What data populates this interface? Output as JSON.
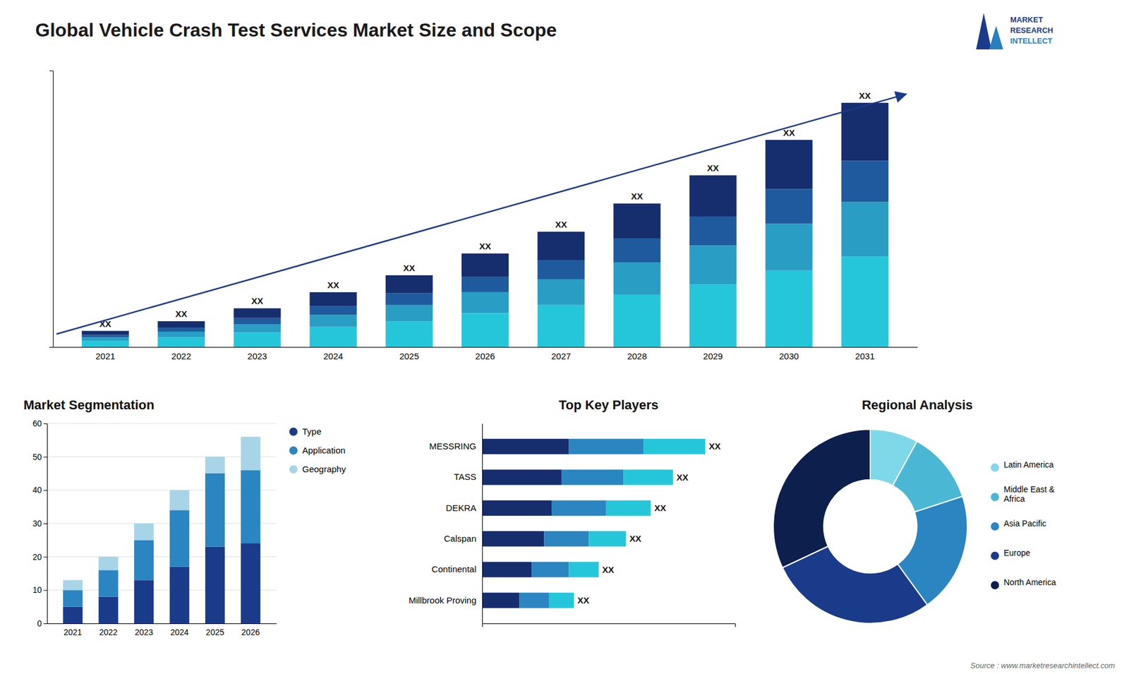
{
  "title": "Global Vehicle Crash Test Services Market Size and Scope",
  "annotations": [
    "Source : www.marketresearchintellect.com",
    "MARKET",
    "RESEARCH",
    "INTELLECT"
  ],
  "chart_data": [
    {
      "type": "bar",
      "stacked": true,
      "categories": [
        "2021",
        "2022",
        "2023",
        "2024",
        "2025",
        "2026",
        "2027",
        "2028",
        "2029",
        "2030",
        "2031"
      ],
      "series": [
        {
          "color": "#26c6da",
          "values": [
            0.8,
            1.2,
            1.8,
            2.5,
            3.2,
            4.2,
            5.2,
            6.5,
            7.8,
            9.5,
            11.2
          ]
        },
        {
          "color": "#2a9dc5",
          "values": [
            0.4,
            0.7,
            1.0,
            1.5,
            2.0,
            2.6,
            3.2,
            4.0,
            4.8,
            5.8,
            6.8
          ]
        },
        {
          "color": "#1f5a9e",
          "values": [
            0.3,
            0.5,
            0.8,
            1.1,
            1.5,
            1.9,
            2.4,
            3.0,
            3.6,
            4.3,
            5.1
          ]
        },
        {
          "color": "#162d6e",
          "values": [
            0.5,
            0.8,
            1.2,
            1.7,
            2.2,
            2.9,
            3.5,
            4.3,
            5.1,
            6.1,
            7.2
          ]
        }
      ],
      "ylim": [
        0,
        34.3
      ],
      "tick_labels": "x",
      "annotations": [
        "XX",
        "XX",
        "XX",
        "XX",
        "XX",
        "XX",
        "XX",
        "XX",
        "XX",
        "XX",
        "XX"
      ]
    },
    {
      "type": "bar",
      "stacked": true,
      "title": "Market Segmentation",
      "categories": [
        "2021",
        "2022",
        "2023",
        "2024",
        "2025",
        "2026"
      ],
      "series": [
        {
          "name": "Type",
          "color": "#1a3a8a",
          "values": [
            5,
            8,
            13,
            17,
            23,
            24
          ]
        },
        {
          "name": "Application",
          "color": "#2a85c0",
          "values": [
            5,
            8,
            12,
            17,
            22,
            22
          ]
        },
        {
          "name": "Geography",
          "color": "#a8d4e8",
          "values": [
            3,
            4,
            5,
            6,
            5,
            10
          ]
        }
      ],
      "ylim": [
        0,
        60
      ],
      "yticks": [
        0,
        10,
        20,
        30,
        40,
        50,
        60
      ],
      "grid": true,
      "legend": "right"
    },
    {
      "type": "bar",
      "stacked": true,
      "orientation": "horizontal",
      "title": "Top Key Players",
      "categories": [
        "MESSRING",
        "TASS",
        "DEKRA",
        "Calspan",
        "Continental",
        "Millbrook Proving"
      ],
      "series": [
        {
          "color": "#162d6e",
          "values": [
            3.5,
            3.2,
            2.8,
            2.5,
            2.0,
            1.5
          ]
        },
        {
          "color": "#2a85c0",
          "values": [
            3.0,
            2.5,
            2.2,
            1.8,
            1.5,
            1.2
          ]
        },
        {
          "color": "#26c6da",
          "values": [
            2.5,
            2.0,
            1.8,
            1.5,
            1.2,
            1.0
          ]
        }
      ],
      "xlim": [
        0,
        10.2
      ],
      "tick_labels": "y",
      "annotations": [
        "XX",
        "XX",
        "XX",
        "XX",
        "XX",
        "XX"
      ]
    },
    {
      "type": "donut",
      "title": "Regional Analysis",
      "categories": [
        "Latin America",
        "Middle East &\nAfrica",
        "Asia Pacific",
        "Europe",
        "North America"
      ],
      "values": [
        8,
        12,
        20,
        28,
        32
      ],
      "colors": [
        "#7fd8e8",
        "#4ab8d4",
        "#2a85c0",
        "#1a3a8a",
        "#0d1f4c"
      ],
      "legend": "right"
    }
  ]
}
